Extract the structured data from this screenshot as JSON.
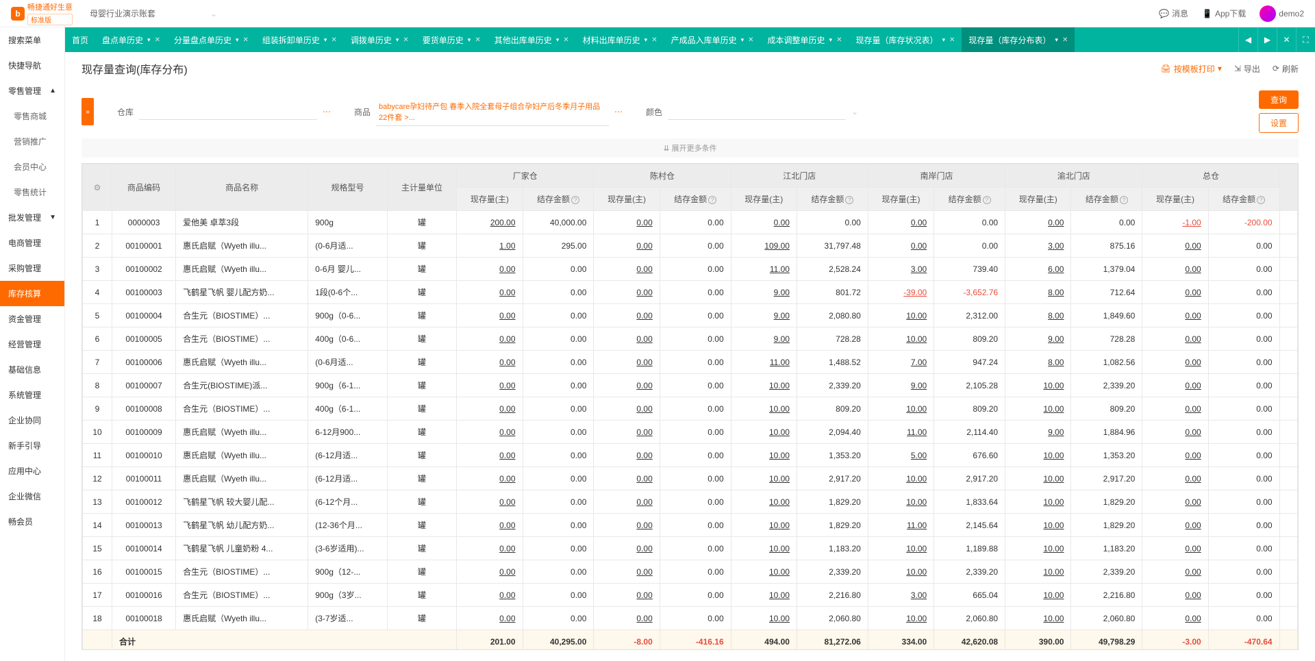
{
  "topbar": {
    "logo_text": "畅捷通好生意",
    "logo_sub": "标准版",
    "account": "母婴行业演示账套",
    "msg": "消息",
    "app": "App下载",
    "user": "demo2"
  },
  "sidebar": {
    "items": [
      {
        "label": "搜索菜单"
      },
      {
        "label": "快捷导航"
      },
      {
        "label": "零售管理",
        "arrow": "▲"
      },
      {
        "label": "零售商城",
        "sub": true
      },
      {
        "label": "营销推广",
        "sub": true
      },
      {
        "label": "会员中心",
        "sub": true
      },
      {
        "label": "零售统计",
        "sub": true
      },
      {
        "label": "批发管理",
        "arrow": "▼"
      },
      {
        "label": "电商管理"
      },
      {
        "label": "采购管理"
      },
      {
        "label": "库存核算",
        "active": true
      },
      {
        "label": "资金管理"
      },
      {
        "label": "经营管理"
      },
      {
        "label": "基础信息"
      },
      {
        "label": "系统管理"
      },
      {
        "label": "企业协同"
      },
      {
        "label": "新手引导"
      },
      {
        "label": "应用中心"
      },
      {
        "label": "企业微信"
      },
      {
        "label": "畅会员"
      }
    ]
  },
  "tabs": [
    {
      "label": "首页"
    },
    {
      "label": "盘点单历史",
      "c": true,
      "d": true
    },
    {
      "label": "分量盘点单历史",
      "c": true,
      "d": true
    },
    {
      "label": "组装拆卸单历史",
      "c": true,
      "d": true
    },
    {
      "label": "调拨单历史",
      "c": true,
      "d": true
    },
    {
      "label": "要货单历史",
      "c": true,
      "d": true
    },
    {
      "label": "其他出库单历史",
      "c": true,
      "d": true
    },
    {
      "label": "材料出库单历史",
      "c": true,
      "d": true
    },
    {
      "label": "产成品入库单历史",
      "c": true,
      "d": true
    },
    {
      "label": "成本调整单历史",
      "c": true,
      "d": true
    },
    {
      "label": "现存量（库存状况表）",
      "c": true,
      "d": true
    },
    {
      "label": "现存量（库存分布表）",
      "c": true,
      "d": true,
      "active": true
    }
  ],
  "page": {
    "title": "现存量查询(库存分布)",
    "print": "按模板打印",
    "export": "导出",
    "refresh": "刷新",
    "filter_wh": "仓库",
    "filter_prod": "商品",
    "filter_color": "颜色",
    "prod_val": "babycare孕妇待产包 春季入院全套母子组合孕妇产后冬季月子用品 22件套 >...",
    "btn_query": "查询",
    "btn_set": "设置",
    "expand": "展开更多条件"
  },
  "table": {
    "group_headers": [
      "",
      "商品编码",
      "商品名称",
      "规格型号",
      "主计量单位",
      "厂家仓",
      "陈村仓",
      "江北门店",
      "南岸门店",
      "渝北门店",
      "总仓",
      ""
    ],
    "sub_headers": [
      "现存量(主)",
      "结存金额",
      "现存量(主)",
      "结存金额",
      "现存量(主)",
      "结存金额",
      "现存量(主)",
      "结存金额",
      "现存量(主)",
      "结存金额",
      "现存量(主)",
      "结存金额",
      "现"
    ],
    "rows": [
      {
        "n": 1,
        "code": "0000003",
        "name": "爱他美 卓萃3段",
        "spec": "900g",
        "unit": "罐",
        "v": [
          "200.00",
          "40,000.00",
          "0.00",
          "0.00",
          "0.00",
          "0.00",
          "0.00",
          "0.00",
          "0.00",
          "0.00",
          "-1.00",
          "-200.00"
        ],
        "neg": [
          10,
          11
        ]
      },
      {
        "n": 2,
        "code": "00100001",
        "name": "惠氏启赋（Wyeth illu...",
        "spec": "(0-6月适...",
        "unit": "罐",
        "v": [
          "1.00",
          "295.00",
          "0.00",
          "0.00",
          "109.00",
          "31,797.48",
          "0.00",
          "0.00",
          "3.00",
          "875.16",
          "0.00",
          "0.00"
        ]
      },
      {
        "n": 3,
        "code": "00100002",
        "name": "惠氏启赋（Wyeth illu...",
        "spec": "0-6月 婴儿...",
        "unit": "罐",
        "v": [
          "0.00",
          "0.00",
          "0.00",
          "0.00",
          "11.00",
          "2,528.24",
          "3.00",
          "739.40",
          "6.00",
          "1,379.04",
          "0.00",
          "0.00"
        ]
      },
      {
        "n": 4,
        "code": "00100003",
        "name": "飞鹤星飞帆 婴儿配方奶...",
        "spec": "1段(0-6个...",
        "unit": "罐",
        "v": [
          "0.00",
          "0.00",
          "0.00",
          "0.00",
          "9.00",
          "801.72",
          "-39.00",
          "-3,652.76",
          "8.00",
          "712.64",
          "0.00",
          "0.00"
        ],
        "neg": [
          6,
          7
        ]
      },
      {
        "n": 5,
        "code": "00100004",
        "name": "合生元（BIOSTIME）...",
        "spec": "900g（0-6...",
        "unit": "罐",
        "v": [
          "0.00",
          "0.00",
          "0.00",
          "0.00",
          "9.00",
          "2,080.80",
          "10.00",
          "2,312.00",
          "8.00",
          "1,849.60",
          "0.00",
          "0.00"
        ]
      },
      {
        "n": 6,
        "code": "00100005",
        "name": "合生元（BIOSTIME）...",
        "spec": "400g（0-6...",
        "unit": "罐",
        "v": [
          "0.00",
          "0.00",
          "0.00",
          "0.00",
          "9.00",
          "728.28",
          "10.00",
          "809.20",
          "9.00",
          "728.28",
          "0.00",
          "0.00"
        ]
      },
      {
        "n": 7,
        "code": "00100006",
        "name": "惠氏启赋（Wyeth illu...",
        "spec": "(0-6月适...",
        "unit": "罐",
        "v": [
          "0.00",
          "0.00",
          "0.00",
          "0.00",
          "11.00",
          "1,488.52",
          "7.00",
          "947.24",
          "8.00",
          "1,082.56",
          "0.00",
          "0.00"
        ]
      },
      {
        "n": 8,
        "code": "00100007",
        "name": "合生元(BIOSTIME)派...",
        "spec": "900g（6-1...",
        "unit": "罐",
        "v": [
          "0.00",
          "0.00",
          "0.00",
          "0.00",
          "10.00",
          "2,339.20",
          "9.00",
          "2,105.28",
          "10.00",
          "2,339.20",
          "0.00",
          "0.00"
        ]
      },
      {
        "n": 9,
        "code": "00100008",
        "name": "合生元（BIOSTIME）...",
        "spec": "400g（6-1...",
        "unit": "罐",
        "v": [
          "0.00",
          "0.00",
          "0.00",
          "0.00",
          "10.00",
          "809.20",
          "10.00",
          "809.20",
          "10.00",
          "809.20",
          "0.00",
          "0.00"
        ]
      },
      {
        "n": 10,
        "code": "00100009",
        "name": "惠氏启赋（Wyeth illu...",
        "spec": "6-12月900...",
        "unit": "罐",
        "v": [
          "0.00",
          "0.00",
          "0.00",
          "0.00",
          "10.00",
          "2,094.40",
          "11.00",
          "2,114.40",
          "9.00",
          "1,884.96",
          "0.00",
          "0.00"
        ]
      },
      {
        "n": 11,
        "code": "00100010",
        "name": "惠氏启赋（Wyeth illu...",
        "spec": "(6-12月适...",
        "unit": "罐",
        "v": [
          "0.00",
          "0.00",
          "0.00",
          "0.00",
          "10.00",
          "1,353.20",
          "5.00",
          "676.60",
          "10.00",
          "1,353.20",
          "0.00",
          "0.00"
        ]
      },
      {
        "n": 12,
        "code": "00100011",
        "name": "惠氏启赋（Wyeth illu...",
        "spec": "(6-12月适...",
        "unit": "罐",
        "v": [
          "0.00",
          "0.00",
          "0.00",
          "0.00",
          "10.00",
          "2,917.20",
          "10.00",
          "2,917.20",
          "10.00",
          "2,917.20",
          "0.00",
          "0.00"
        ]
      },
      {
        "n": 13,
        "code": "00100012",
        "name": "飞鹤星飞帆 较大婴儿配...",
        "spec": "(6-12个月...",
        "unit": "罐",
        "v": [
          "0.00",
          "0.00",
          "0.00",
          "0.00",
          "10.00",
          "1,829.20",
          "10.00",
          "1,833.64",
          "10.00",
          "1,829.20",
          "0.00",
          "0.00"
        ]
      },
      {
        "n": 14,
        "code": "00100013",
        "name": "飞鹤星飞帆 幼儿配方奶...",
        "spec": "(12-36个月...",
        "unit": "罐",
        "v": [
          "0.00",
          "0.00",
          "0.00",
          "0.00",
          "10.00",
          "1,829.20",
          "11.00",
          "2,145.64",
          "10.00",
          "1,829.20",
          "0.00",
          "0.00"
        ]
      },
      {
        "n": 15,
        "code": "00100014",
        "name": "飞鹤星飞帆 儿童奶粉 4...",
        "spec": "(3-6岁适用)...",
        "unit": "罐",
        "v": [
          "0.00",
          "0.00",
          "0.00",
          "0.00",
          "10.00",
          "1,183.20",
          "10.00",
          "1,189.88",
          "10.00",
          "1,183.20",
          "0.00",
          "0.00"
        ]
      },
      {
        "n": 16,
        "code": "00100015",
        "name": "合生元（BIOSTIME）...",
        "spec": "900g（12-...",
        "unit": "罐",
        "v": [
          "0.00",
          "0.00",
          "0.00",
          "0.00",
          "10.00",
          "2,339.20",
          "10.00",
          "2,339.20",
          "10.00",
          "2,339.20",
          "0.00",
          "0.00"
        ]
      },
      {
        "n": 17,
        "code": "00100016",
        "name": "合生元（BIOSTIME）...",
        "spec": "900g（3岁...",
        "unit": "罐",
        "v": [
          "0.00",
          "0.00",
          "0.00",
          "0.00",
          "10.00",
          "2,216.80",
          "3.00",
          "665.04",
          "10.00",
          "2,216.80",
          "0.00",
          "0.00"
        ]
      },
      {
        "n": 18,
        "code": "00100018",
        "name": "惠氏启赋（Wyeth illu...",
        "spec": "(3-7岁适...",
        "unit": "罐",
        "v": [
          "0.00",
          "0.00",
          "0.00",
          "0.00",
          "10.00",
          "2,060.80",
          "10.00",
          "2,060.80",
          "10.00",
          "2,060.80",
          "0.00",
          "0.00"
        ]
      }
    ],
    "total_label": "合计",
    "totals": [
      "201.00",
      "40,295.00",
      "-8.00",
      "-416.16",
      "494.00",
      "81,272.06",
      "334.00",
      "42,620.08",
      "390.00",
      "49,798.29",
      "-3.00",
      "-470.64"
    ],
    "totals_neg": [
      2,
      3,
      10,
      11
    ]
  }
}
